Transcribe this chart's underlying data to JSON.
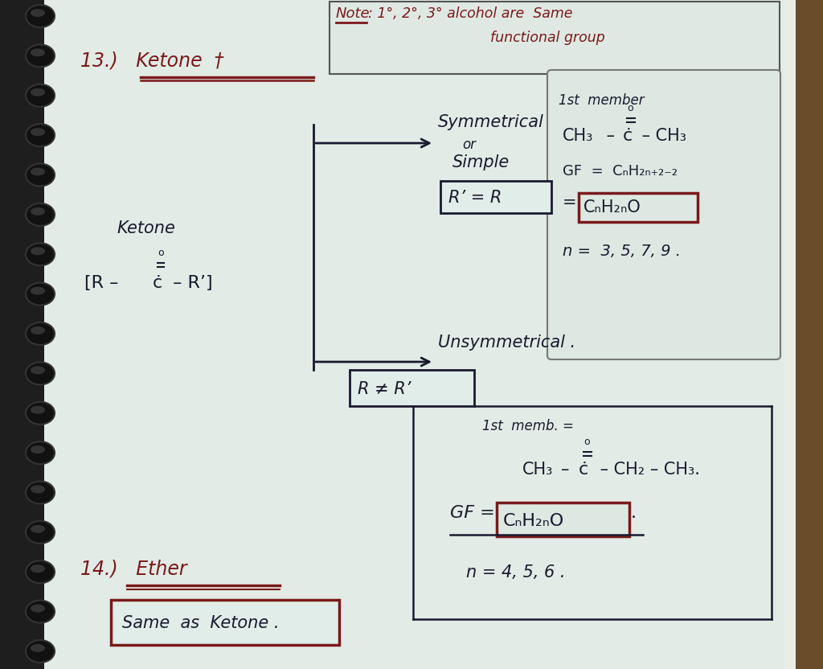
{
  "bg_left_color": "#3a3a3a",
  "page_color": "#e8eee8",
  "page_color2": "#dde8e0",
  "ink": "#1a1a2e",
  "red": "#7a1a1a",
  "dark_red": "#8b2020",
  "note_text1": ": 1°, 2°, 3° alcohol are  Same",
  "note_text2": "functional group",
  "note_underline": "Note",
  "title13": "13.)   Ketone  †",
  "ketone_label": "Ketone",
  "sym_label": "Symmetrical",
  "or_label": "or",
  "simple_label": "Simple",
  "r_eq_r_box": "R’ = R",
  "sym_1st": "1st  member",
  "sym_ch3": "CH₃",
  "sym_c": "ċ",
  "sym_ch3b": "CH₃",
  "gf_sym1": "GF  =  CₙH₂ₙ₊₂₋₂",
  "gf_sym_eq": "=",
  "gf_sym_box": "CₙH₂ₙO",
  "n_sym": "n =  3, 5, 7, 9 .",
  "unsym_label": "Unsymmetrical .",
  "r_neq_r_box": "R ≠ R’",
  "unsym_1st": "1st  memb. =",
  "unsym_ch3": "CH₃",
  "unsym_c": "ċ",
  "unsym_ch2": "CH₂",
  "unsym_ch3b": "CH₃.",
  "gf_unsym_eq": "GF =",
  "gf_unsym_box": "CₙH₂ₙO",
  "gf_unsym_dot": ".",
  "n_unsym": "n = 4, 5, 6 .",
  "title14": "14.)   Ether",
  "ether_box": "Same  as  Ketone ."
}
